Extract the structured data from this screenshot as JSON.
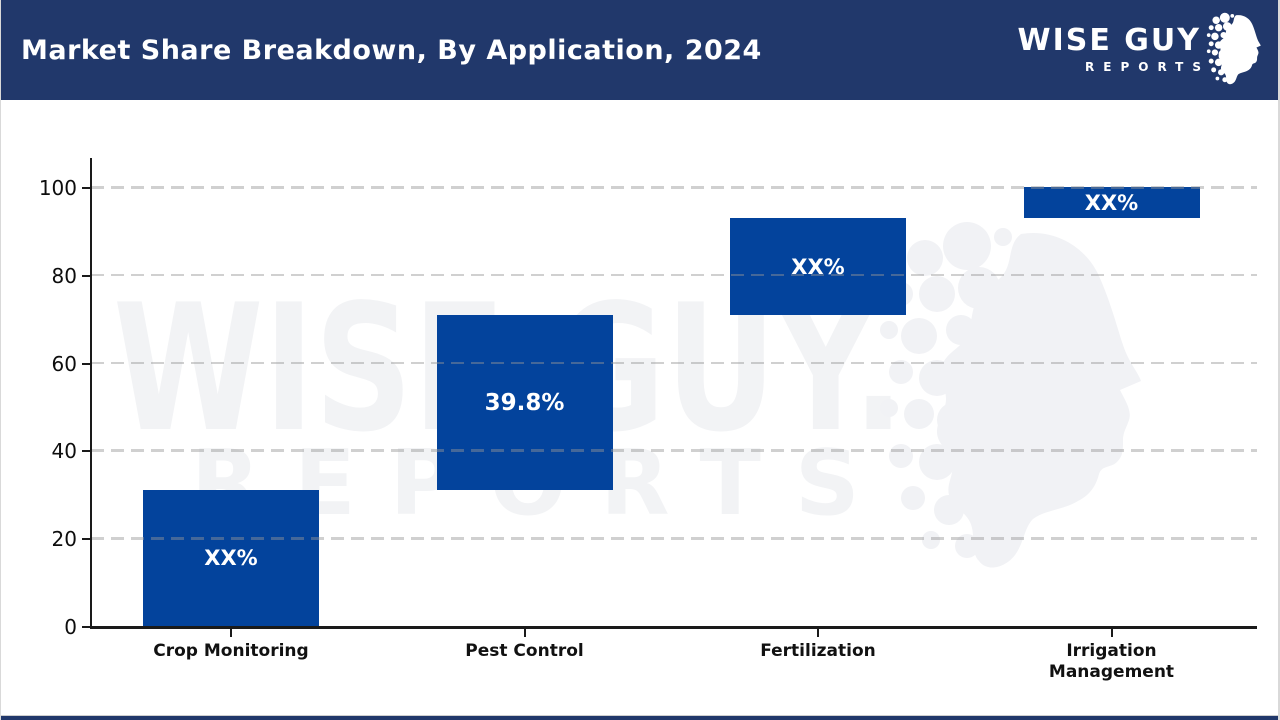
{
  "header": {
    "title": "Market Share Breakdown, By Application, 2024",
    "logo": {
      "line1": "WISE GUY",
      "line2": "REPORTS"
    }
  },
  "watermark": {
    "line1": "WISE GUY.",
    "line2": "REPORTS"
  },
  "colors": {
    "header_bg": "#21386b",
    "bar": "#03439c",
    "axis": "#1a1a1a",
    "gridline": "#d6d6d6",
    "watermark": "#f2f3f5",
    "bar_label_text": "#ffffff"
  },
  "chart_data": {
    "type": "bar",
    "subtype": "waterfall",
    "title": "Market Share Breakdown, By Application, 2024",
    "xlabel": "",
    "ylabel": "",
    "categories": [
      "Crop Monitoring",
      "Pest Control",
      "Fertilization",
      "Irrigation Management"
    ],
    "segments": [
      {
        "category": "Crop Monitoring",
        "start": 0,
        "end": 31,
        "label": "XX%",
        "label_font_px": 21
      },
      {
        "category": "Pest Control",
        "start": 31,
        "end": 70.8,
        "label": "39.8%",
        "value": 39.8,
        "label_font_px": 23
      },
      {
        "category": "Fertilization",
        "start": 70.8,
        "end": 92.9,
        "label": "XX%",
        "label_font_px": 21
      },
      {
        "category": "Irrigation Management",
        "start": 92.9,
        "end": 100,
        "label": "XX%",
        "label_font_px": 21
      }
    ],
    "ylim": [
      0,
      105
    ],
    "yticks": [
      "0",
      "20",
      "40",
      "60",
      "80",
      "100"
    ],
    "grid": true,
    "legend": "none",
    "bar_color": "#03439c"
  }
}
